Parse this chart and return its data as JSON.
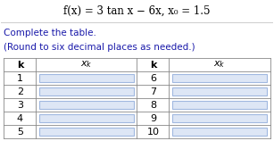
{
  "title": "f(x) = 3 tan x − 6x, x₀ = 1.5",
  "subtitle1": "Complete the table.",
  "subtitle2": "(Round to six decimal places as needed.)",
  "col_headers": [
    "k",
    "x_k",
    "k",
    "x_k"
  ],
  "k_left": [
    1,
    2,
    3,
    4,
    5
  ],
  "k_right": [
    6,
    7,
    8,
    9,
    10
  ],
  "bg_color": "#ffffff",
  "cell_input_color": "#dde6f5",
  "cell_input_border": "#a0b8e0",
  "title_color": "#000000",
  "subtitle_color": "#1a1aaa",
  "header_text_color": "#000000",
  "grid_color": "#888888",
  "line_color": "#cccccc",
  "title_fontsize": 8.5,
  "subtitle_fontsize": 7.5,
  "table_fontsize": 8.0
}
